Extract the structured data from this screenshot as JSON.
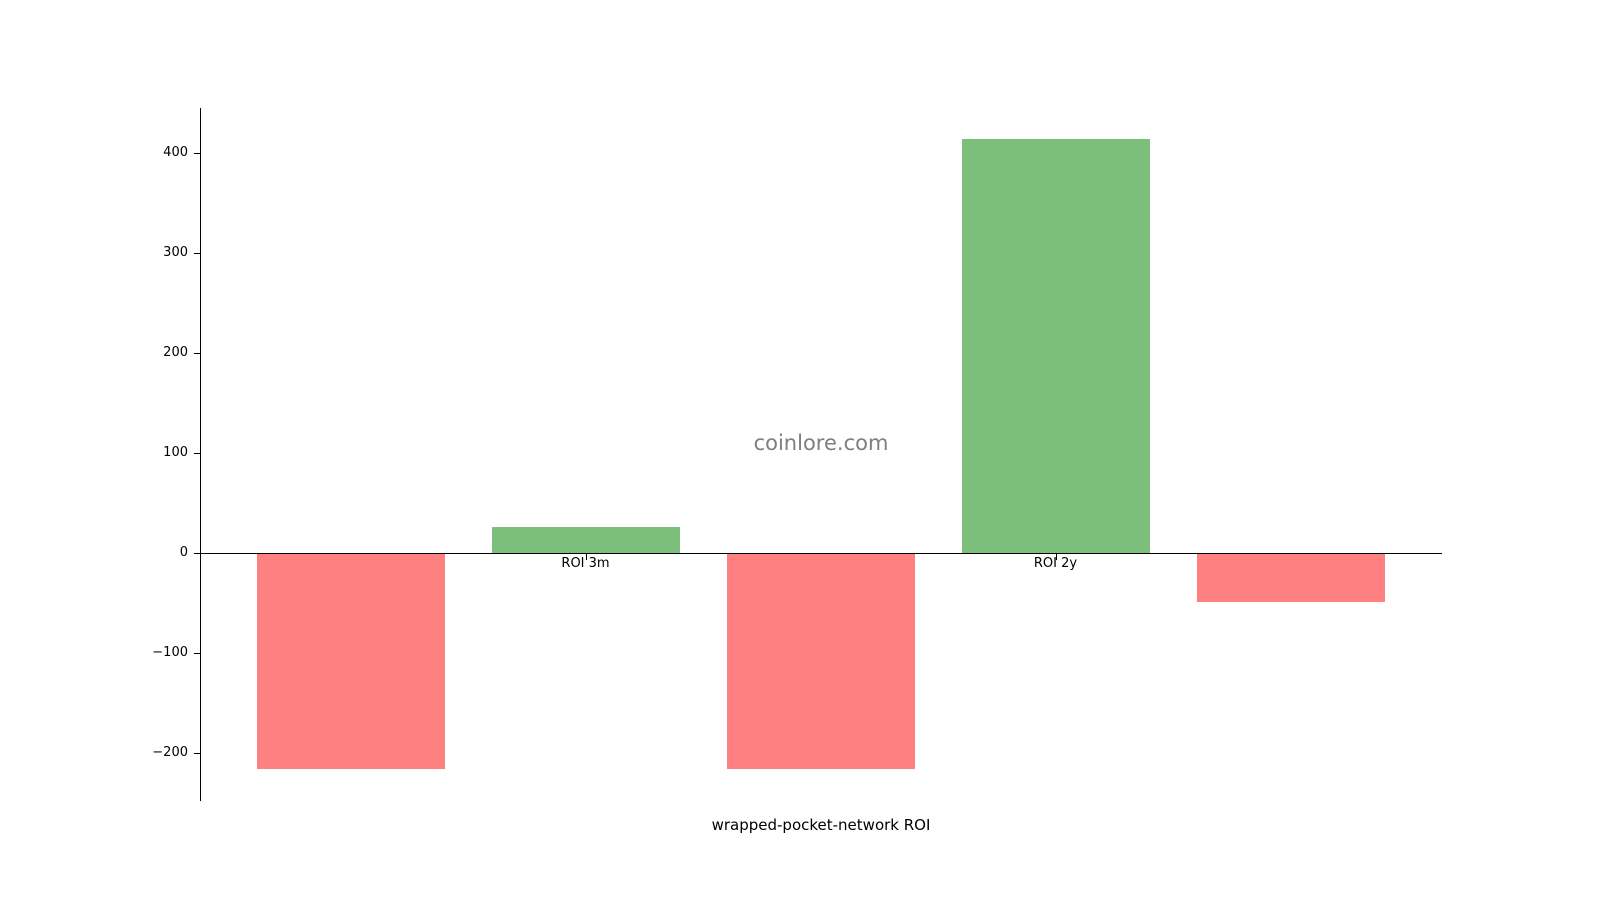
{
  "chart_data": {
    "type": "bar",
    "title": "",
    "xlabel": "wrapped-pocket-network ROI",
    "ylabel": "",
    "watermark_text": "coinlore.com",
    "categories": [
      "",
      "ROI 3m",
      "",
      "ROI 2y",
      ""
    ],
    "values": [
      -215,
      26,
      -215,
      414,
      -48
    ],
    "colors": {
      "positive": "#7cbe7c",
      "negative": "#ff8080",
      "watermark": "#7f7f7f",
      "axis": "#000000"
    },
    "ytick_values": [
      400,
      300,
      200,
      100,
      0,
      -100,
      -200
    ],
    "ytick_labels": [
      "400",
      "300",
      "200",
      "100",
      "0",
      "−100",
      "−200"
    ],
    "ylim": [
      -246,
      445
    ],
    "grid": false,
    "legend": "none"
  }
}
